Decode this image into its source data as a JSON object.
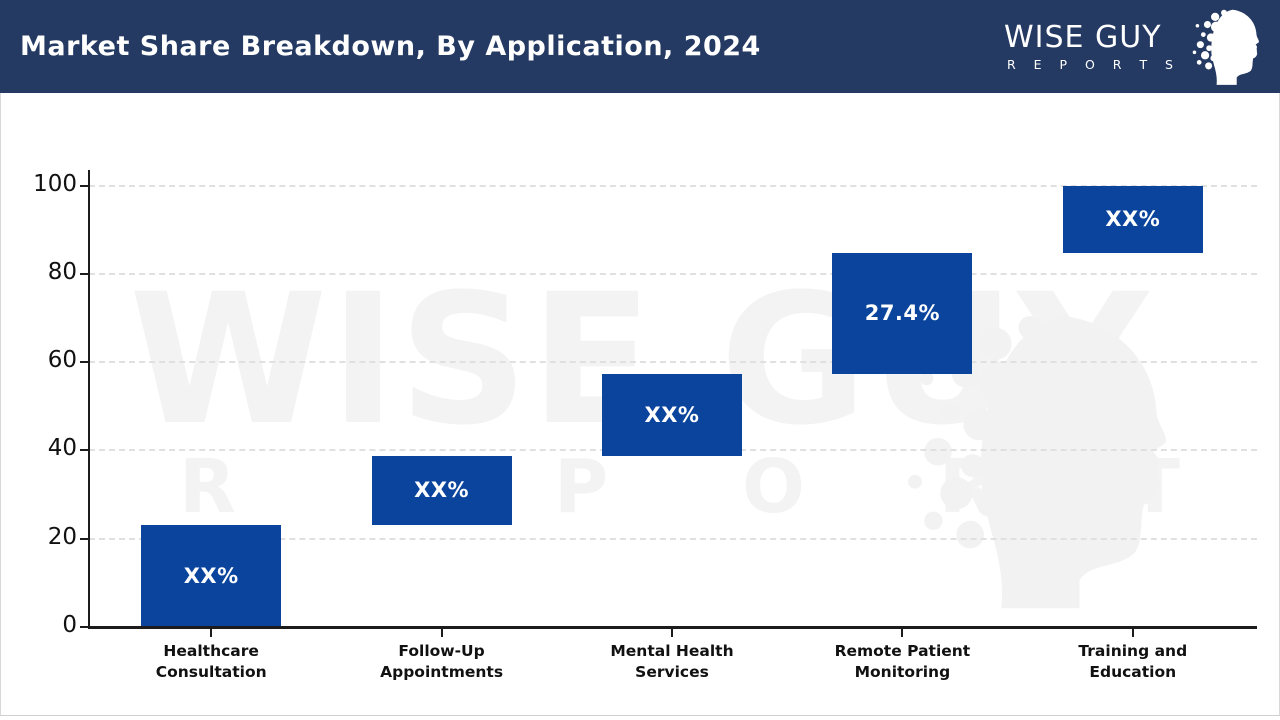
{
  "header": {
    "title": "Market Share Breakdown, By Application, 2024",
    "logo": {
      "name": "WISE GUY",
      "sub": "R E P O R T S"
    }
  },
  "watermark": {
    "line1": "WISE GUY",
    "line2": "R E P O R T S"
  },
  "chart_data": {
    "type": "bar",
    "subtype": "waterfall",
    "title": "Market Share Breakdown, By Application, 2024",
    "categories": [
      "Healthcare Consultation",
      "Follow-Up Appointments",
      "Mental Health Services",
      "Remote Patient Monitoring",
      "Training and Education"
    ],
    "segments": [
      {
        "label": "Healthcare Consultation",
        "label_lines": [
          "Healthcare",
          "Consultation"
        ],
        "start": 0,
        "end": 23.2,
        "value": 23.2,
        "value_label": "XX%"
      },
      {
        "label": "Follow-Up Appointments",
        "label_lines": [
          "Follow-Up",
          "Appointments"
        ],
        "start": 23.2,
        "end": 38.8,
        "value": 15.6,
        "value_label": "XX%"
      },
      {
        "label": "Mental Health Services",
        "label_lines": [
          "Mental Health",
          "Services"
        ],
        "start": 38.8,
        "end": 57.4,
        "value": 18.6,
        "value_label": "XX%"
      },
      {
        "label": "Remote Patient Monitoring",
        "label_lines": [
          "Remote Patient",
          "Monitoring"
        ],
        "start": 57.4,
        "end": 84.8,
        "value": 27.4,
        "value_label": "27.4%"
      },
      {
        "label": "Training and Education",
        "label_lines": [
          "Training and",
          "Education"
        ],
        "start": 84.8,
        "end": 100,
        "value": 15.2,
        "value_label": "XX%"
      }
    ],
    "y_ticks": [
      0,
      20,
      40,
      60,
      80,
      100
    ],
    "ylim": [
      0,
      100
    ],
    "xlabel": "",
    "ylabel": "",
    "legend": "none",
    "grid": {
      "axis": "y",
      "style": "dashed",
      "color": "#e0e0e0"
    },
    "bar_color": "#0a449c",
    "value_label_color": "#ffffff",
    "header_color": "#243a63",
    "watermark_color": "#f3f3f3"
  }
}
